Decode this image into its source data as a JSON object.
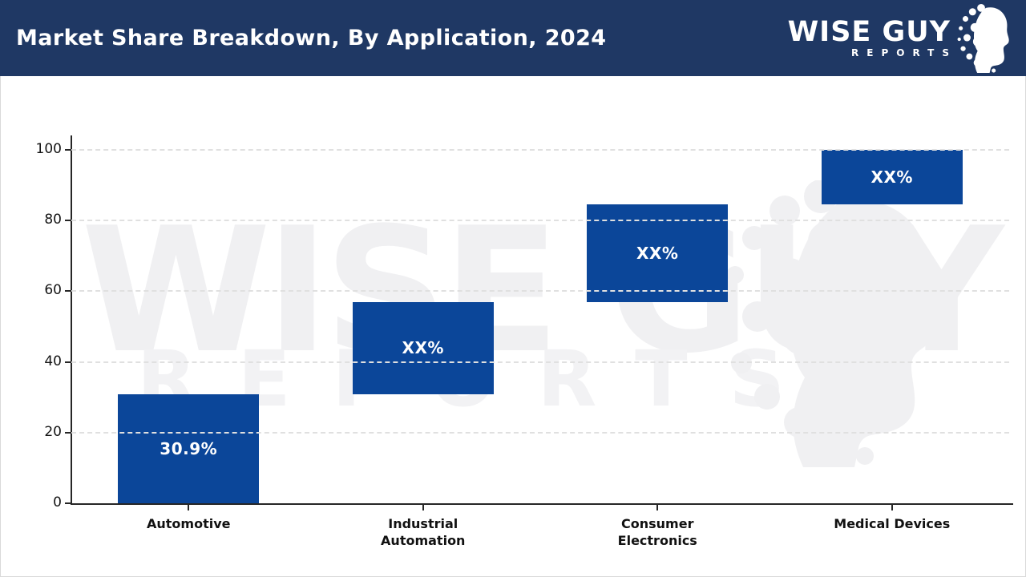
{
  "header": {
    "title": "Market Share Breakdown, By Application, 2024",
    "logo": {
      "line1": "WISE GUY",
      "line2": "REPORTS"
    }
  },
  "watermark": {
    "line1": "WISE GUY",
    "line2": "REPORTS"
  },
  "chart_data": {
    "type": "bar",
    "subtype": "waterfall",
    "title": "Market Share Breakdown, By Application, 2024",
    "categories": [
      "Automotive",
      "Industrial Automation",
      "Consumer Electronics",
      "Medical Devices"
    ],
    "category_lines": [
      [
        "Automotive"
      ],
      [
        "Industrial",
        "Automation"
      ],
      [
        "Consumer",
        "Electronics"
      ],
      [
        "Medical Devices"
      ]
    ],
    "segments": [
      {
        "category": "Automotive",
        "start": 0,
        "end": 30.9,
        "label": "30.9%"
      },
      {
        "category": "Industrial Automation",
        "start": 30.9,
        "end": 56.9,
        "label": "XX%"
      },
      {
        "category": "Consumer Electronics",
        "start": 56.9,
        "end": 84.6,
        "label": "XX%"
      },
      {
        "category": "Medical Devices",
        "start": 84.6,
        "end": 100,
        "label": "XX%"
      }
    ],
    "xlabel": "",
    "ylabel": "",
    "ylim": [
      0,
      100
    ],
    "yticks": [
      0,
      20,
      40,
      60,
      80,
      100
    ],
    "grid": "horizontal-dashed",
    "legend": "none",
    "colors": {
      "header_bg": "#1f3864",
      "bar": "#0b4699",
      "bar_label": "#ffffff",
      "grid": "#e0e0e0",
      "axis": "#262626",
      "watermark": "#f0f0f2"
    }
  }
}
